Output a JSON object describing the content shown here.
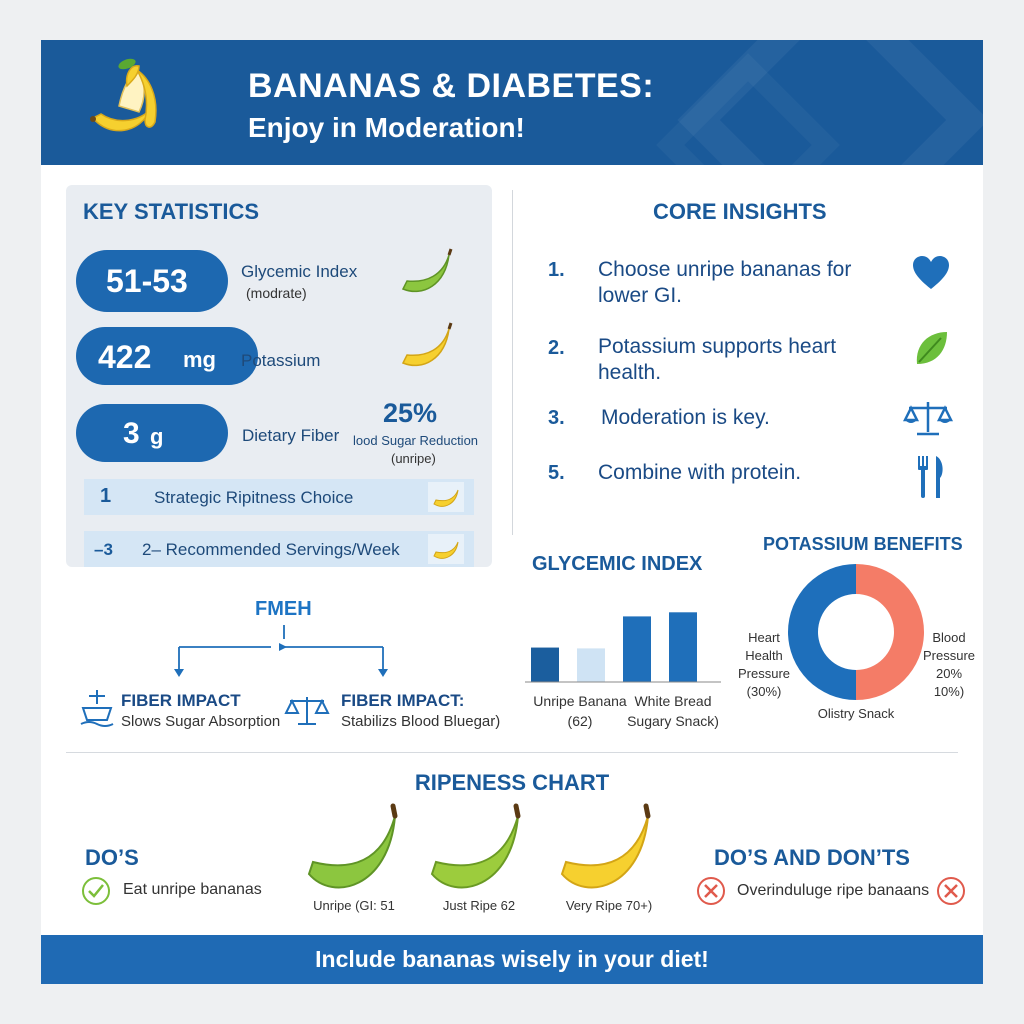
{
  "header": {
    "title": "BANANAS & DIABETES:",
    "subtitle": "Enjoy in Moderation!"
  },
  "key_statistics": {
    "title": "KEY STATISTICS",
    "stats": [
      {
        "value": "51-53",
        "label": "Glycemic Index",
        "note": "(modrate)"
      },
      {
        "value": "422",
        "unit": "mg",
        "label": "Potassium"
      },
      {
        "value": "3",
        "unit": "g",
        "label": "Dietary Fiber"
      }
    ],
    "overlay_percent": "25%",
    "overlay_label": "lood Sugar Reduction",
    "overlay_note": "(unripe)",
    "strips": [
      {
        "tag": "1",
        "text": "Strategic Ripitness Choice"
      },
      {
        "tag": "–3",
        "text": "2– Recommended Servings/Week"
      }
    ]
  },
  "core_insights": {
    "title": "CORE INSIGHTS",
    "items": [
      {
        "num": "1.",
        "text": "Choose unripe bananas for lower GI.",
        "icon": "heart-icon"
      },
      {
        "num": "2.",
        "text": "Potassium supports heart health.",
        "icon": "leaf-icon"
      },
      {
        "num": "3.",
        "text": "Moderation is key.",
        "icon": "scales-icon"
      },
      {
        "num": "5.",
        "text": "Combine with protein.",
        "icon": "fork-knife-icon"
      }
    ]
  },
  "fiber_flow": {
    "title": "FMEH",
    "left": {
      "heading": "FIBER IMPACT",
      "desc": "Slows Sugar Absorption",
      "icon": "ship-icon"
    },
    "right": {
      "heading": "FIBER IMPACT:",
      "desc": "Stabilizs Blood Bluegar)",
      "icon": "scales-icon"
    }
  },
  "glycemic_chart": {
    "title": "GLYCEMIC INDEX",
    "labels": [
      {
        "line1": "Unripe Banana",
        "line2": "(62)"
      },
      {
        "line1": "White Bread",
        "line2": "Sugary Snack)"
      }
    ]
  },
  "chart_data": {
    "type": "bar",
    "categories": [
      "",
      "",
      "",
      ""
    ],
    "values": [
      42,
      41,
      80,
      85
    ],
    "colors": [
      "#1b5e9e",
      "#cfe3f4",
      "#1f6fba",
      "#1f6fba"
    ],
    "ylim": [
      0,
      100
    ],
    "grid": false,
    "title": "GLYCEMIC INDEX"
  },
  "potassium": {
    "title": "POTASSIUM BENEFITS",
    "left_label": [
      "Heart",
      "Health",
      "Pressure",
      "(30%)"
    ],
    "right_label": [
      "Blood",
      "Pressure",
      "20%",
      "10%)"
    ],
    "bottom_label": "Olistry Snack",
    "left_color": "#1e6fbb",
    "right_color": "#f47c67"
  },
  "ripeness": {
    "title": "RIPENESS CHART",
    "stages": [
      {
        "label": "Unripe (GI: 51",
        "color": "#8cc63f"
      },
      {
        "label": "Just Ripe 62",
        "color": "#9ccc3d"
      },
      {
        "label": "Very Ripe 70+)",
        "color": "#f6d02f"
      }
    ]
  },
  "dos": {
    "title": "DO’S",
    "item": "Eat unripe bananas"
  },
  "donts": {
    "title": "DO’S AND DON’TS",
    "item": "Overinduluge ripe banaans"
  },
  "footer": {
    "text": "Include bananas wisely in your diet!"
  },
  "colors": {
    "brand_blue": "#1a5a9a",
    "accent_blue": "#1f6ab4",
    "green": "#8cc63f",
    "yellow": "#f6d02f",
    "coral": "#f47c67"
  }
}
